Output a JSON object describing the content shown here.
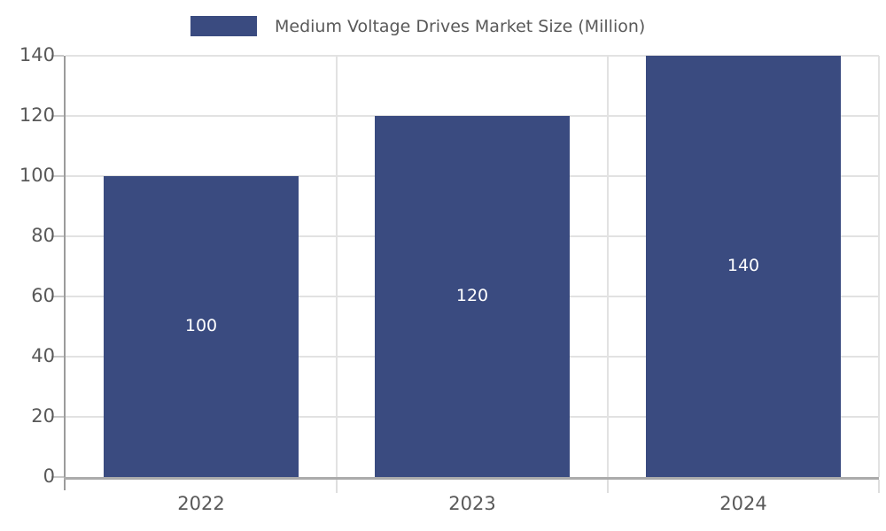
{
  "legend": {
    "label": "Medium Voltage Drives Market Size (Million)"
  },
  "colors": {
    "bar": "#3A4B80",
    "axis_text": "#595959",
    "bar_label_text": "#ffffff",
    "gridline": "#e2e2e2",
    "axis_line": "#a3a3a3"
  },
  "chart_data": {
    "type": "bar",
    "title": "Medium Voltage Drives Market Size (Million)",
    "categories": [
      "2022",
      "2023",
      "2024"
    ],
    "values": [
      100,
      120,
      140
    ],
    "bar_labels": [
      "100",
      "120",
      "140"
    ],
    "xlabel": "",
    "ylabel": "",
    "ylim": [
      0,
      140
    ],
    "yticks": [
      0,
      20,
      40,
      60,
      80,
      100,
      120,
      140
    ],
    "grid": true,
    "legend_position": "top-center",
    "legend_entries": [
      "Medium Voltage Drives Market Size (Million)"
    ]
  }
}
